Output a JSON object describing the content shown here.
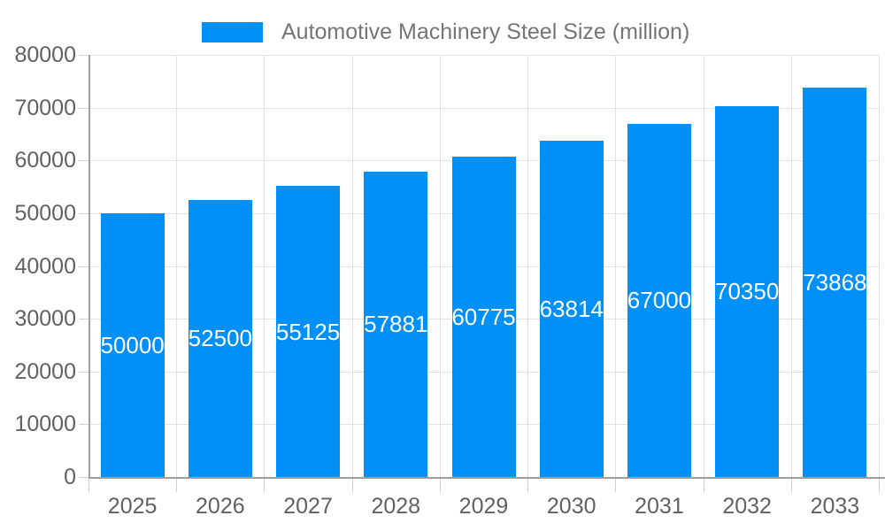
{
  "legend": {
    "label": "Automotive Machinery Steel Size (million)"
  },
  "colors": {
    "bar": "#0190f7",
    "bar_label": "#ffffff",
    "axis_text": "#616161",
    "legend_text": "#757575",
    "grid": "#e2e2e2",
    "tick": "#cfcfcf",
    "axis_line": "#9e9e9e",
    "background": "#ffffff"
  },
  "chart_data": {
    "type": "bar",
    "title": "Automotive Machinery Steel Size (million)",
    "series_name": "Automotive Machinery Steel Size (million)",
    "categories": [
      "2025",
      "2026",
      "2027",
      "2028",
      "2029",
      "2030",
      "2031",
      "2032",
      "2033"
    ],
    "values": [
      50000,
      52500,
      55125,
      57881,
      60775,
      63814,
      67000,
      70350,
      73868
    ],
    "value_labels": [
      "50000",
      "52500",
      "55125",
      "57881",
      "60775",
      "63814",
      "67000",
      "70350",
      "73868"
    ],
    "value_labels_position": "inside-center",
    "xlabel": "",
    "ylabel": "",
    "ylim": [
      0,
      80000
    ],
    "yticks": [
      0,
      10000,
      20000,
      30000,
      40000,
      50000,
      60000,
      70000,
      80000
    ],
    "grid": true,
    "legend_position": "top"
  }
}
